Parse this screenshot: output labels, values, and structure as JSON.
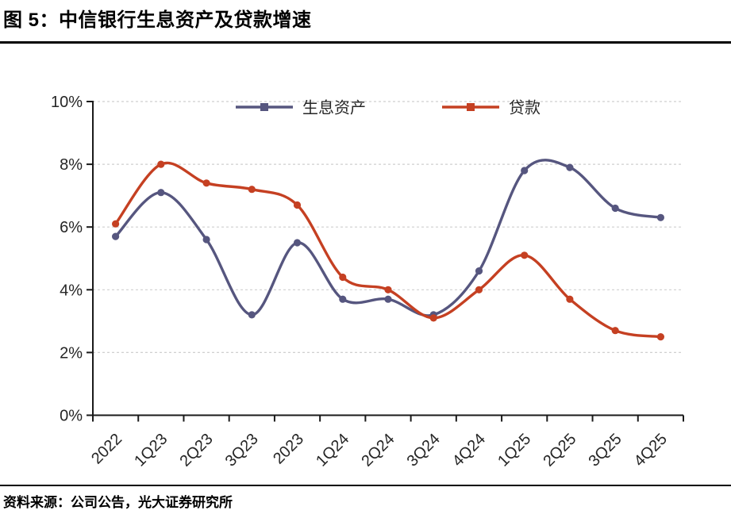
{
  "header": {
    "title": "图 5：中信银行生息资产及贷款增速"
  },
  "footer": {
    "source": "资料来源：公司公告，光大证券研究所"
  },
  "chart_data": {
    "type": "line",
    "title": "中信银行生息资产及贷款增速",
    "categories": [
      "2022",
      "1Q23",
      "2Q23",
      "3Q23",
      "2023",
      "1Q24",
      "2Q24",
      "3Q24",
      "4Q24",
      "1Q25",
      "2Q25",
      "3Q25",
      "4Q25"
    ],
    "series": [
      {
        "name": "生息资产",
        "color": "#56567F",
        "values": [
          5.7,
          7.1,
          5.6,
          3.2,
          5.5,
          3.7,
          3.7,
          3.2,
          4.6,
          7.8,
          7.9,
          6.6,
          6.3
        ]
      },
      {
        "name": "贷款",
        "color": "#C54022",
        "values": [
          6.1,
          8.0,
          7.4,
          7.2,
          6.7,
          4.4,
          4.0,
          3.1,
          4.0,
          5.1,
          3.7,
          2.7,
          2.5
        ]
      }
    ],
    "xlabel": "",
    "ylabel": "",
    "ylim": [
      0,
      10
    ],
    "yticks": [
      0,
      2,
      4,
      6,
      8,
      10
    ],
    "ytick_labels": [
      "0%",
      "2%",
      "4%",
      "6%",
      "8%",
      "10%"
    ],
    "grid": "horizontal-dashed",
    "legend_position": "top-center",
    "line_style": "smooth-with-markers",
    "colors": {
      "axis": "#1a1a1a",
      "gridline": "#cfcfcf",
      "tick_text": "#262626",
      "legend_text": "#262626"
    }
  }
}
